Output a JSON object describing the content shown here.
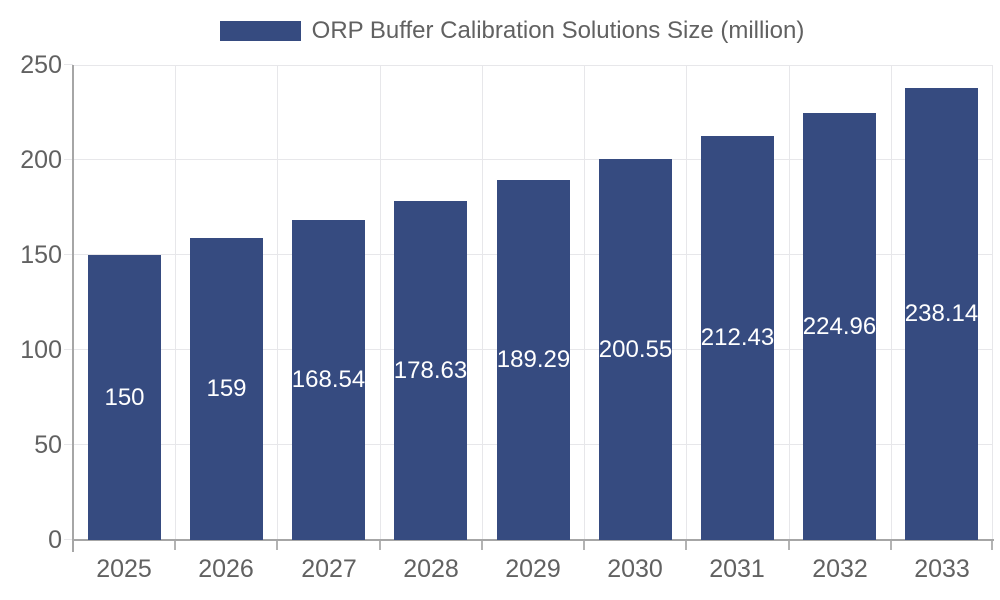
{
  "legend": {
    "label": "ORP Buffer Calibration Solutions Size (million)"
  },
  "chart_data": {
    "type": "bar",
    "title": "ORP Buffer Calibration Solutions Size (million)",
    "categories": [
      "2025",
      "2026",
      "2027",
      "2028",
      "2029",
      "2030",
      "2031",
      "2032",
      "2033"
    ],
    "values": [
      150,
      159,
      168.54,
      178.63,
      189.29,
      200.55,
      212.43,
      224.96,
      238.14
    ],
    "bar_labels": [
      "150",
      "159",
      "168.54",
      "178.63",
      "189.29",
      "200.55",
      "212.43",
      "224.96",
      "238.14"
    ],
    "xlabel": "",
    "ylabel": "",
    "ylim": [
      0,
      250
    ],
    "yticks": [
      0,
      50,
      100,
      150,
      200,
      250
    ],
    "grid": true,
    "legend_position": "top",
    "colors": {
      "bar": "#364B80",
      "bar_label": "#FFFFFF",
      "axis": "#A6A6A6",
      "grid": "#E7E7EA",
      "tick": "#B3B3B3",
      "text": "#616161",
      "background": "#FFFFFF"
    }
  }
}
